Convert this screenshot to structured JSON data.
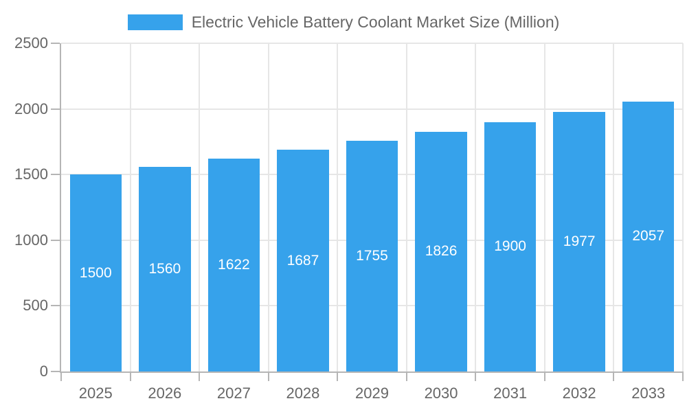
{
  "legend": {
    "label": "Electric Vehicle Battery Coolant Market Size (Million)"
  },
  "chart_data": {
    "type": "bar",
    "title": "Electric Vehicle Battery Coolant Market Size (Million)",
    "categories": [
      "2025",
      "2026",
      "2027",
      "2028",
      "2029",
      "2030",
      "2031",
      "2032",
      "2033"
    ],
    "values": [
      1500,
      1560,
      1622,
      1687,
      1755,
      1826,
      1900,
      1977,
      2057
    ],
    "xlabel": "",
    "ylabel": "",
    "ylim": [
      0,
      2500
    ],
    "yticks": [
      0,
      500,
      1000,
      1500,
      2000,
      2500
    ],
    "grid": true,
    "legend_position": "top",
    "value_labels": "inside-center"
  },
  "colors": {
    "bar": "#36A2EB",
    "value_label": "#ffffff",
    "text": "#666666",
    "grid": "#e6e6e6",
    "axis": "#b5b5b5",
    "background": "#ffffff"
  }
}
